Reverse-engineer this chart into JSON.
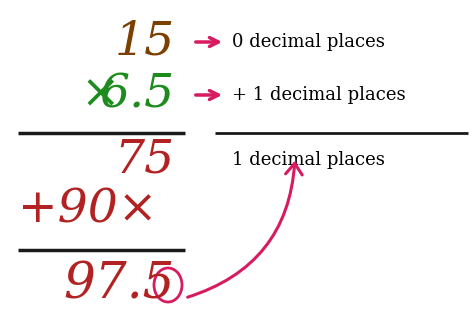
{
  "bg_color": "#ffffff",
  "brown_color": "#7B3F00",
  "green_color": "#1E8B1E",
  "red_color": "#B22222",
  "black_color": "#000000",
  "pink_color": "#D81B60",
  "line_color": "#1a1a1a",
  "text_15": "15",
  "text_times": "×",
  "text_65": "6.5",
  "text_75": "75",
  "text_90x": "+90×",
  "text_975": "97.5",
  "label_0dp": "0 decimal places",
  "label_1dp_plus": "+ 1 decimal places",
  "label_1dp": "1 decimal places",
  "figsize": [
    4.74,
    3.32
  ],
  "dpi": 100,
  "fs_main": 30,
  "fs_label": 13
}
